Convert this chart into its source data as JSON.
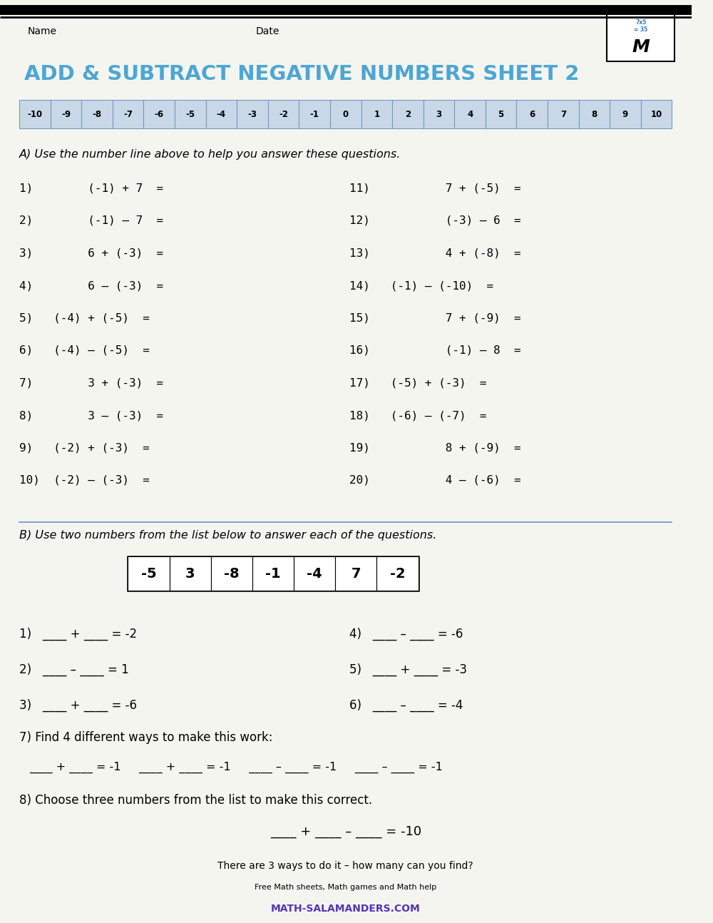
{
  "title": "ADD & SUBTRACT NEGATIVE NUMBERS SHEET 2",
  "title_color": "#4da6d4",
  "bg_color": "#f5f5f0",
  "number_line": [
    "-10",
    "-9",
    "-8",
    "-7",
    "-6",
    "-5",
    "-4",
    "-3",
    "-2",
    "-1",
    "0",
    "1",
    "2",
    "3",
    "4",
    "5",
    "6",
    "7",
    "8",
    "9",
    "10"
  ],
  "number_line_bg": "#c8d8e8",
  "number_line_border": "#7799bb",
  "section_a_title": "A) Use the number line above to help you answer these questions.",
  "section_b_title": "B) Use two numbers from the list below to answer each of the questions.",
  "questions_left": [
    "1)        (-1) + 7  =",
    "2)        (-1) – 7  =",
    "3)        6 + (-3)  =",
    "4)        6 – (-3)  =",
    "5)   (-4) + (-5)  =",
    "6)   (-4) – (-5)  =",
    "7)        3 + (-3)  =",
    "8)        3 – (-3)  =",
    "9)   (-2) + (-3)  =",
    "10)  (-2) – (-3)  ="
  ],
  "questions_right": [
    "11)           7 + (-5)  =",
    "12)           (-3) – 6  =",
    "13)           4 + (-8)  =",
    "14)   (-1) – (-10)  =",
    "15)           7 + (-9)  =",
    "16)           (-1) – 8  =",
    "17)   (-5) + (-3)  =",
    "18)   (-6) – (-7)  =",
    "19)           8 + (-9)  =",
    "20)           4 – (-6)  ="
  ],
  "box_numbers": [
    "-5",
    "3",
    "-8",
    "-1",
    "-4",
    "7",
    "-2"
  ],
  "b_questions_left": [
    "1)   ____ + ____ = -2",
    "2)   ____ – ____ = 1",
    "3)   ____ + ____ = -6"
  ],
  "b_questions_right": [
    "4)   ____ – ____ = -6",
    "5)   ____ + ____ = -3",
    "6)   ____ – ____ = -4"
  ],
  "q7_text": "7) Find 4 different ways to make this work:",
  "q7_expressions": "____ + ____ = -1     ____ + ____ = -1     ____ – ____ = -1     ____ – ____ = -1",
  "q8_text": "8) Choose three numbers from the list to make this correct.",
  "q8_expression": "____ + ____ – ____ = -10",
  "footer1": "There are 3 ways to do it – how many can you find?",
  "footer2": "Free Math sheets, Math games and Math help",
  "footer3": "MATH-SALAMANDERS.COM",
  "divider_color": "#7799cc",
  "name_label": "Name",
  "date_label": "Date"
}
